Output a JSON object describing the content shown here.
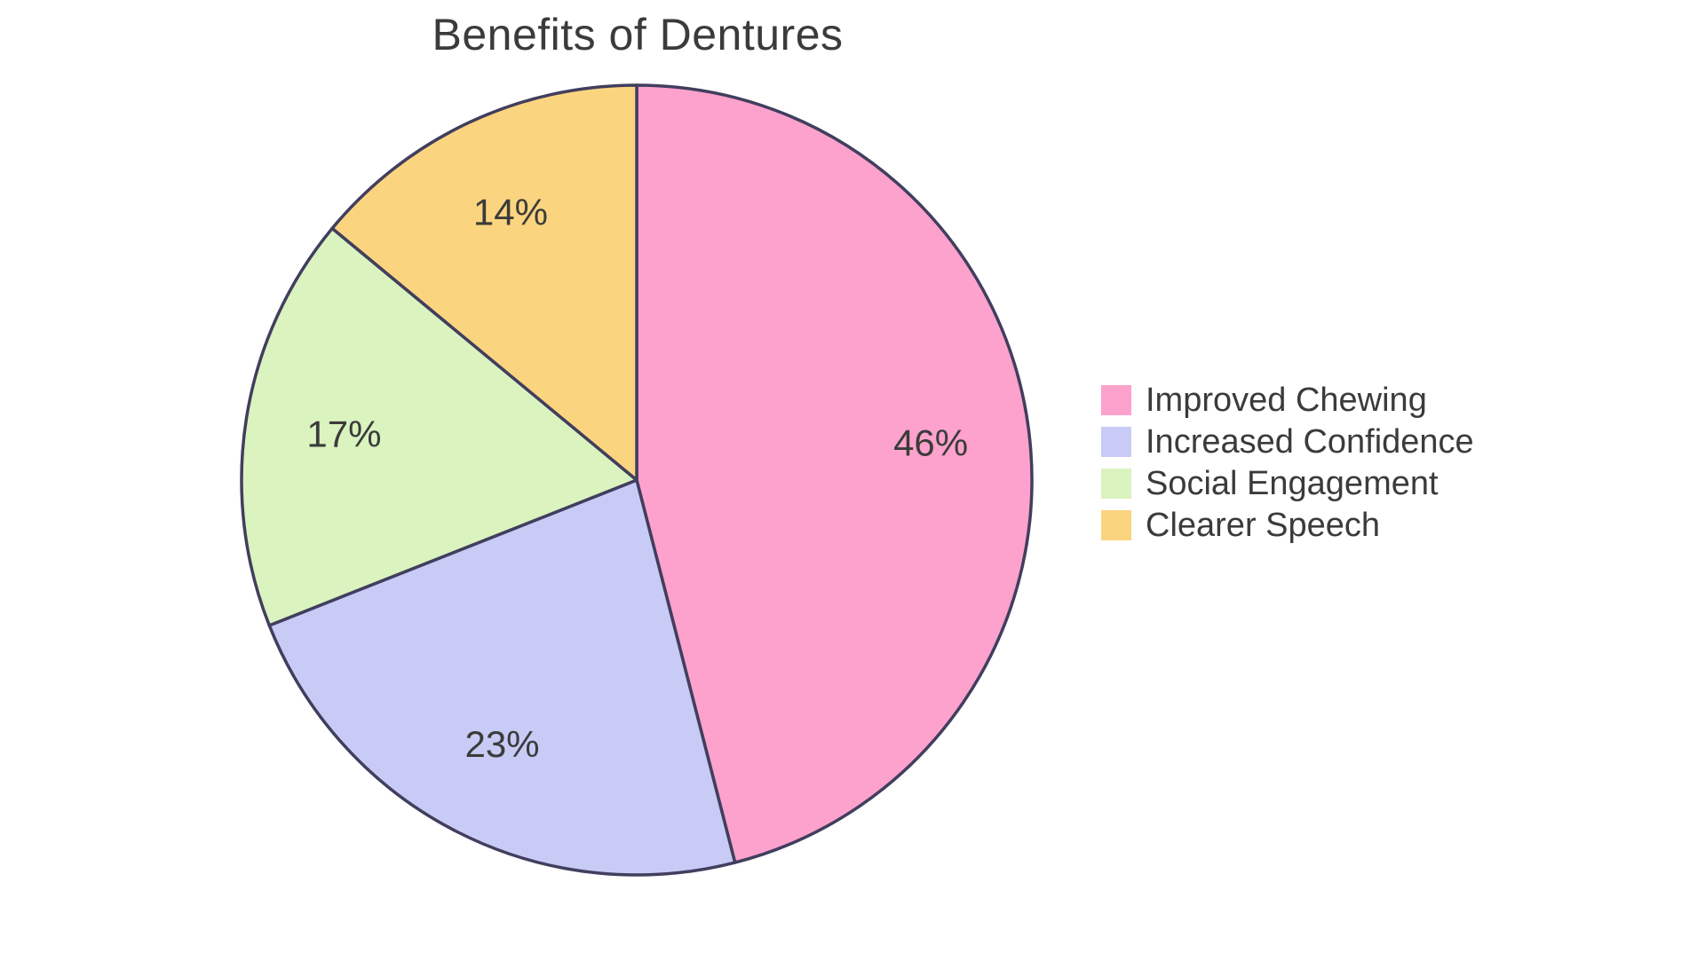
{
  "chart_data": {
    "type": "pie",
    "title": "Benefits of Dentures",
    "slices": [
      {
        "label": "Improved Chewing",
        "value": 46,
        "percent_label": "46%",
        "color": "#FCA2CC"
      },
      {
        "label": "Increased Confidence",
        "value": 23,
        "percent_label": "23%",
        "color": "#C7CBF5"
      },
      {
        "label": "Social Engagement",
        "value": 17,
        "percent_label": "17%",
        "color": "#DAF3BF"
      },
      {
        "label": "Clearer Speech",
        "value": 14,
        "percent_label": "14%",
        "color": "#FBD47F"
      }
    ],
    "start_angle": "12-oclock",
    "direction": "clockwise",
    "stroke_color": "#413E5E",
    "stroke_width": 3.5,
    "label_color": "#3B3B3B",
    "pct_distance": 0.75,
    "legend_position": "right",
    "background_color": "#FFFFFF"
  }
}
